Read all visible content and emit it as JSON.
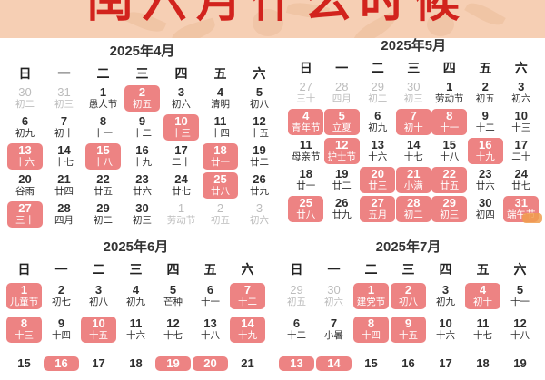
{
  "banner": {
    "title": "闰六月什么时候",
    "bg_color": "#f6cfb4",
    "text_color": "#d2231d"
  },
  "colors": {
    "highlight": "#ed8383",
    "day_text": "#2e2e2e",
    "dim_text": "#bcbcbc",
    "badge": "#f09d4f",
    "content_bg": "#ffffff"
  },
  "weekdays": [
    "日",
    "一",
    "二",
    "三",
    "四",
    "五",
    "六"
  ],
  "months": [
    {
      "title": "2025年4月",
      "days": [
        {
          "n": "30",
          "l": "初二",
          "s": "d"
        },
        {
          "n": "31",
          "l": "初三",
          "s": "d"
        },
        {
          "n": "1",
          "l": "愚人节"
        },
        {
          "n": "2",
          "l": "初五",
          "s": "h"
        },
        {
          "n": "3",
          "l": "初六"
        },
        {
          "n": "4",
          "l": "清明"
        },
        {
          "n": "5",
          "l": "初八"
        },
        {
          "n": "6",
          "l": "初九"
        },
        {
          "n": "7",
          "l": "初十"
        },
        {
          "n": "8",
          "l": "十一"
        },
        {
          "n": "9",
          "l": "十二"
        },
        {
          "n": "10",
          "l": "十三",
          "s": "h"
        },
        {
          "n": "11",
          "l": "十四"
        },
        {
          "n": "12",
          "l": "十五"
        },
        {
          "n": "13",
          "l": "十六",
          "s": "h"
        },
        {
          "n": "14",
          "l": "十七"
        },
        {
          "n": "15",
          "l": "十八",
          "s": "h"
        },
        {
          "n": "16",
          "l": "十九"
        },
        {
          "n": "17",
          "l": "二十"
        },
        {
          "n": "18",
          "l": "廿一",
          "s": "h"
        },
        {
          "n": "19",
          "l": "廿二"
        },
        {
          "n": "20",
          "l": "谷雨"
        },
        {
          "n": "21",
          "l": "廿四"
        },
        {
          "n": "22",
          "l": "廿五"
        },
        {
          "n": "23",
          "l": "廿六"
        },
        {
          "n": "24",
          "l": "廿七"
        },
        {
          "n": "25",
          "l": "廿八",
          "s": "h"
        },
        {
          "n": "26",
          "l": "廿九"
        },
        {
          "n": "27",
          "l": "三十",
          "s": "h"
        },
        {
          "n": "28",
          "l": "四月"
        },
        {
          "n": "29",
          "l": "初二"
        },
        {
          "n": "30",
          "l": "初三"
        },
        {
          "n": "1",
          "l": "劳动节",
          "s": "d"
        },
        {
          "n": "2",
          "l": "初五",
          "s": "d"
        },
        {
          "n": "3",
          "l": "初六",
          "s": "d"
        }
      ]
    },
    {
      "title": "2025年5月",
      "days": [
        {
          "n": "27",
          "l": "三十",
          "s": "d"
        },
        {
          "n": "28",
          "l": "四月",
          "s": "d"
        },
        {
          "n": "29",
          "l": "初二",
          "s": "d"
        },
        {
          "n": "30",
          "l": "初三",
          "s": "d"
        },
        {
          "n": "1",
          "l": "劳动节"
        },
        {
          "n": "2",
          "l": "初五"
        },
        {
          "n": "3",
          "l": "初六"
        },
        {
          "n": "4",
          "l": "青年节",
          "s": "h"
        },
        {
          "n": "5",
          "l": "立夏",
          "s": "h"
        },
        {
          "n": "6",
          "l": "初九"
        },
        {
          "n": "7",
          "l": "初十",
          "s": "h"
        },
        {
          "n": "8",
          "l": "十一",
          "s": "h"
        },
        {
          "n": "9",
          "l": "十二"
        },
        {
          "n": "10",
          "l": "十三"
        },
        {
          "n": "11",
          "l": "母亲节"
        },
        {
          "n": "12",
          "l": "护士节",
          "s": "h"
        },
        {
          "n": "13",
          "l": "十六"
        },
        {
          "n": "14",
          "l": "十七"
        },
        {
          "n": "15",
          "l": "十八"
        },
        {
          "n": "16",
          "l": "十九",
          "s": "h"
        },
        {
          "n": "17",
          "l": "二十"
        },
        {
          "n": "18",
          "l": "廿一"
        },
        {
          "n": "19",
          "l": "廿二"
        },
        {
          "n": "20",
          "l": "廿三",
          "s": "h"
        },
        {
          "n": "21",
          "l": "小满",
          "s": "h"
        },
        {
          "n": "22",
          "l": "廿五",
          "s": "h"
        },
        {
          "n": "23",
          "l": "廿六"
        },
        {
          "n": "24",
          "l": "廿七"
        },
        {
          "n": "25",
          "l": "廿八",
          "s": "h"
        },
        {
          "n": "26",
          "l": "廿九"
        },
        {
          "n": "27",
          "l": "五月",
          "s": "h"
        },
        {
          "n": "28",
          "l": "初二",
          "s": "h"
        },
        {
          "n": "29",
          "l": "初三",
          "s": "h"
        },
        {
          "n": "30",
          "l": "初四"
        },
        {
          "n": "31",
          "l": "端午节",
          "s": "h",
          "b": true
        }
      ]
    },
    {
      "title": "2025年6月",
      "days": [
        {
          "n": "1",
          "l": "儿童节",
          "s": "h"
        },
        {
          "n": "2",
          "l": "初七"
        },
        {
          "n": "3",
          "l": "初八"
        },
        {
          "n": "4",
          "l": "初九"
        },
        {
          "n": "5",
          "l": "芒种"
        },
        {
          "n": "6",
          "l": "十一"
        },
        {
          "n": "7",
          "l": "十二",
          "s": "h"
        },
        {
          "n": "8",
          "l": "十三",
          "s": "h"
        },
        {
          "n": "9",
          "l": "十四"
        },
        {
          "n": "10",
          "l": "十五",
          "s": "h"
        },
        {
          "n": "11",
          "l": "十六"
        },
        {
          "n": "12",
          "l": "十七"
        },
        {
          "n": "13",
          "l": "十八"
        },
        {
          "n": "14",
          "l": "十九",
          "s": "h"
        },
        {
          "n": "15",
          "l": ""
        },
        {
          "n": "16",
          "l": "",
          "s": "h"
        },
        {
          "n": "17",
          "l": ""
        },
        {
          "n": "18",
          "l": ""
        },
        {
          "n": "19",
          "l": "",
          "s": "h"
        },
        {
          "n": "20",
          "l": "",
          "s": "h"
        },
        {
          "n": "21",
          "l": ""
        }
      ]
    },
    {
      "title": "2025年7月",
      "days": [
        {
          "n": "29",
          "l": "初五",
          "s": "d"
        },
        {
          "n": "30",
          "l": "初六",
          "s": "d"
        },
        {
          "n": "1",
          "l": "建党节",
          "s": "h"
        },
        {
          "n": "2",
          "l": "初八",
          "s": "h"
        },
        {
          "n": "3",
          "l": "初九"
        },
        {
          "n": "4",
          "l": "初十",
          "s": "h"
        },
        {
          "n": "5",
          "l": "十一"
        },
        {
          "n": "6",
          "l": "十二"
        },
        {
          "n": "7",
          "l": "小暑"
        },
        {
          "n": "8",
          "l": "十四",
          "s": "h"
        },
        {
          "n": "9",
          "l": "十五",
          "s": "h"
        },
        {
          "n": "10",
          "l": "十六"
        },
        {
          "n": "11",
          "l": "十七"
        },
        {
          "n": "12",
          "l": "十八"
        },
        {
          "n": "13",
          "l": "",
          "s": "h"
        },
        {
          "n": "14",
          "l": "",
          "s": "h"
        },
        {
          "n": "15",
          "l": ""
        },
        {
          "n": "16",
          "l": ""
        },
        {
          "n": "17",
          "l": ""
        },
        {
          "n": "18",
          "l": ""
        },
        {
          "n": "19",
          "l": ""
        }
      ]
    }
  ]
}
